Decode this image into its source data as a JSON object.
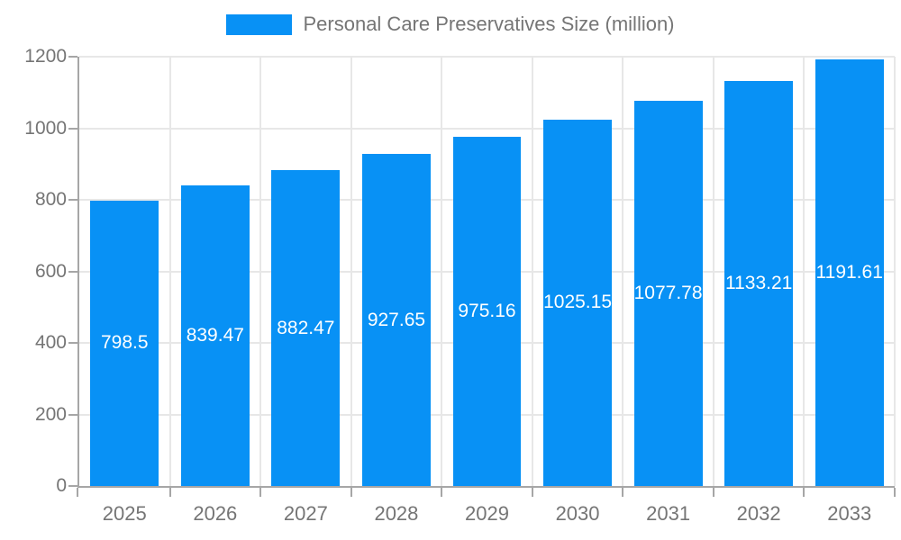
{
  "legend": {
    "label": "Personal Care Preservatives Size (million)"
  },
  "colors": {
    "bar": "#0891f5",
    "axis_line": "#a6a6a6",
    "grid_line": "#e7e7e7",
    "tick_label": "#757575",
    "value_label": "#ffffff"
  },
  "chart_data": {
    "type": "bar",
    "title": "Personal Care Preservatives Size (million)",
    "categories": [
      "2025",
      "2026",
      "2027",
      "2028",
      "2029",
      "2030",
      "2031",
      "2032",
      "2033"
    ],
    "values": [
      798.5,
      839.47,
      882.47,
      927.65,
      975.16,
      1025.15,
      1077.78,
      1133.21,
      1191.61
    ],
    "xlabel": "",
    "ylabel": "",
    "ylim": [
      0,
      1200
    ],
    "ytick_step": 200,
    "yticks": [
      0,
      200,
      400,
      600,
      800,
      1000,
      1200
    ],
    "grid": true,
    "legend_position": "top",
    "bar_width_fraction": 0.755,
    "value_labels": "inside-center-white"
  }
}
